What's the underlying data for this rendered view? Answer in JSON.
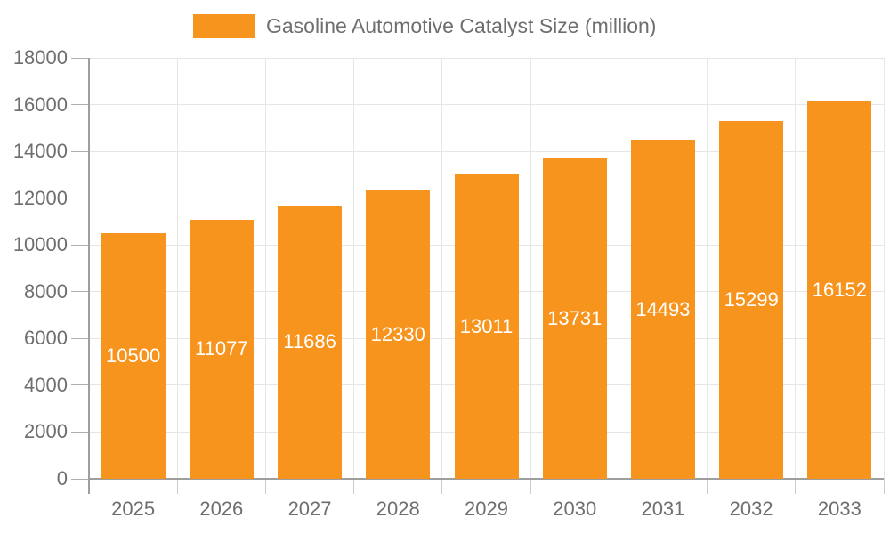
{
  "legend": {
    "label": "Gasoline Automotive Catalyst Size (million)"
  },
  "chart_data": {
    "type": "bar",
    "title": "Gasoline Automotive Catalyst Size (million)",
    "categories": [
      "2025",
      "2026",
      "2027",
      "2028",
      "2029",
      "2030",
      "2031",
      "2032",
      "2033"
    ],
    "series": [
      {
        "name": "Gasoline Automotive Catalyst Size (million)",
        "values": [
          10500,
          11077,
          11686,
          12330,
          13011,
          13731,
          14493,
          15299,
          16152
        ]
      }
    ],
    "bar_labels": [
      "10500",
      "11077",
      "11686",
      "12330",
      "13011",
      "13731",
      "14493",
      "15299",
      "16152"
    ],
    "xlabel": "",
    "ylabel": "",
    "ylim": [
      0,
      18000
    ],
    "yticks": [
      0,
      2000,
      4000,
      6000,
      8000,
      10000,
      12000,
      14000,
      16000,
      18000
    ],
    "ytick_labels": [
      "0",
      "2000",
      "4000",
      "6000",
      "8000",
      "10000",
      "12000",
      "14000",
      "16000",
      "18000"
    ],
    "grid": true,
    "legend_position": "top",
    "colors": {
      "bar": "#f7941e",
      "bar_label": "#ffffff",
      "axis_text": "#6e6e6e",
      "gridline": "#e6e6e6",
      "axis_line": "#9e9e9e",
      "background": "#ffffff"
    }
  }
}
